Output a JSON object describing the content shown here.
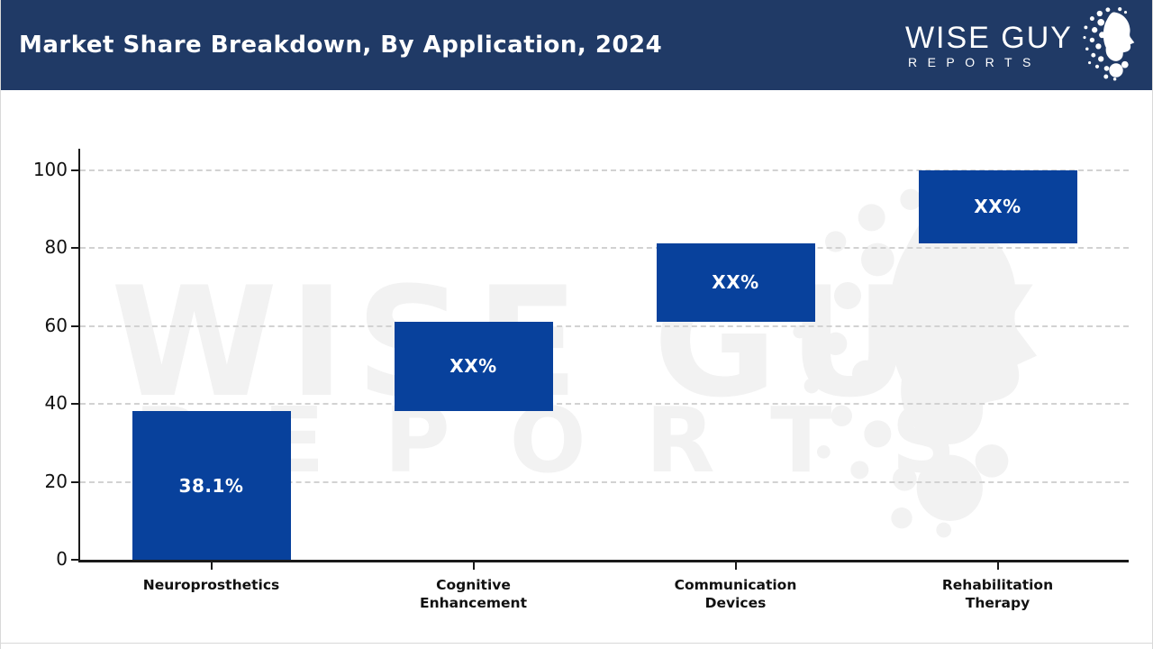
{
  "header": {
    "title": "Market Share Breakdown, By Application, 2024",
    "background_color": "#203a66",
    "logo": {
      "line1": "WISE GUY",
      "line2": "REPORTS"
    }
  },
  "watermark": {
    "line1": "WISE GUY",
    "line2": "REPORTS"
  },
  "colors": {
    "bar": "#08419c",
    "header_bg": "#203a66",
    "axis": "#1a1a1a",
    "grid": "#d2d2d2",
    "tick_text": "#111111",
    "bar_label_text": "#ffffff",
    "watermark": "#f2f2f2"
  },
  "chart_data": {
    "type": "bar",
    "subtype": "waterfall-floating-bars",
    "title": "Market Share Breakdown, By Application, 2024",
    "xlabel": "",
    "ylabel": "",
    "ylim": [
      0,
      100
    ],
    "yticks": [
      0,
      20,
      40,
      60,
      80,
      100
    ],
    "grid": "horizontal-dashed",
    "legend": "none",
    "categories": [
      "Neuroprosthetics",
      "Cognitive Enhancement",
      "Communication Devices",
      "Rehabilitation Therapy"
    ],
    "bars": [
      {
        "category": "Neuroprosthetics",
        "label_lines": [
          "Neuroprosthetics"
        ],
        "start": 0,
        "end": 38.1,
        "value_label": "38.1%"
      },
      {
        "category": "Cognitive Enhancement",
        "label_lines": [
          "Cognitive",
          "Enhancement"
        ],
        "start": 38.1,
        "end": 61.1,
        "value_label": "XX%"
      },
      {
        "category": "Communication Devices",
        "label_lines": [
          "Communication",
          "Devices"
        ],
        "start": 61.1,
        "end": 81.1,
        "value_label": "XX%"
      },
      {
        "category": "Rehabilitation Therapy",
        "label_lines": [
          "Rehabilitation",
          "Therapy"
        ],
        "start": 81.1,
        "end": 100,
        "value_label": "XX%"
      }
    ]
  }
}
